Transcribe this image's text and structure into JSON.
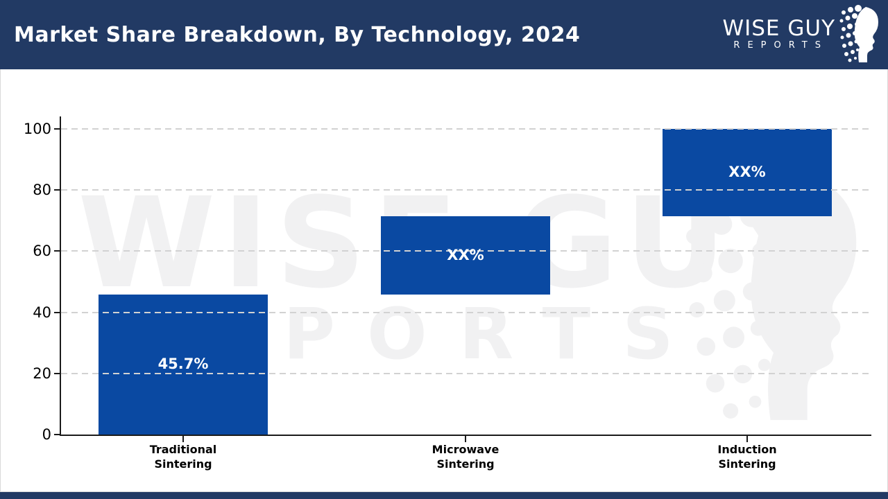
{
  "header": {
    "title": "Market Share Breakdown, By Technology, 2024",
    "logo": {
      "brand_line1": "WISE GUY",
      "brand_line2": "REPORTS"
    }
  },
  "watermark": {
    "line1": "WISE GUY",
    "line2": "REPORTS"
  },
  "chart_data": {
    "type": "bar",
    "subtype": "floating segment bars (waterfall-style market share breakdown)",
    "title": "Market Share Breakdown, By Technology, 2024",
    "categories": [
      "Traditional Sintering",
      "Microwave Sintering",
      "Induction Sintering"
    ],
    "bars": [
      {
        "category": "Traditional Sintering",
        "start": 0,
        "end": 45.7,
        "label": "45.7%"
      },
      {
        "category": "Microwave Sintering",
        "start": 45.7,
        "end": 71.5,
        "label": "XX%"
      },
      {
        "category": "Induction Sintering",
        "start": 71.5,
        "end": 100,
        "label": "XX%"
      }
    ],
    "xlabel": "",
    "ylabel": "",
    "yticks": [
      0,
      20,
      40,
      60,
      80,
      100
    ],
    "ylim": [
      0,
      104
    ],
    "grid": "horizontal dashed gridlines drawn over bars",
    "legend_position": "none",
    "bar_color": "#0A49A2"
  },
  "colors": {
    "header_bg": "#223A64",
    "footer_bg": "#223A64",
    "bar": "#0A49A2",
    "bar_label": "#FFFFFF",
    "gridline": "#D2D2D2",
    "axis": "#1A1A1A",
    "watermark": "#F1F1F2",
    "page_bg": "#FFFFFF"
  }
}
